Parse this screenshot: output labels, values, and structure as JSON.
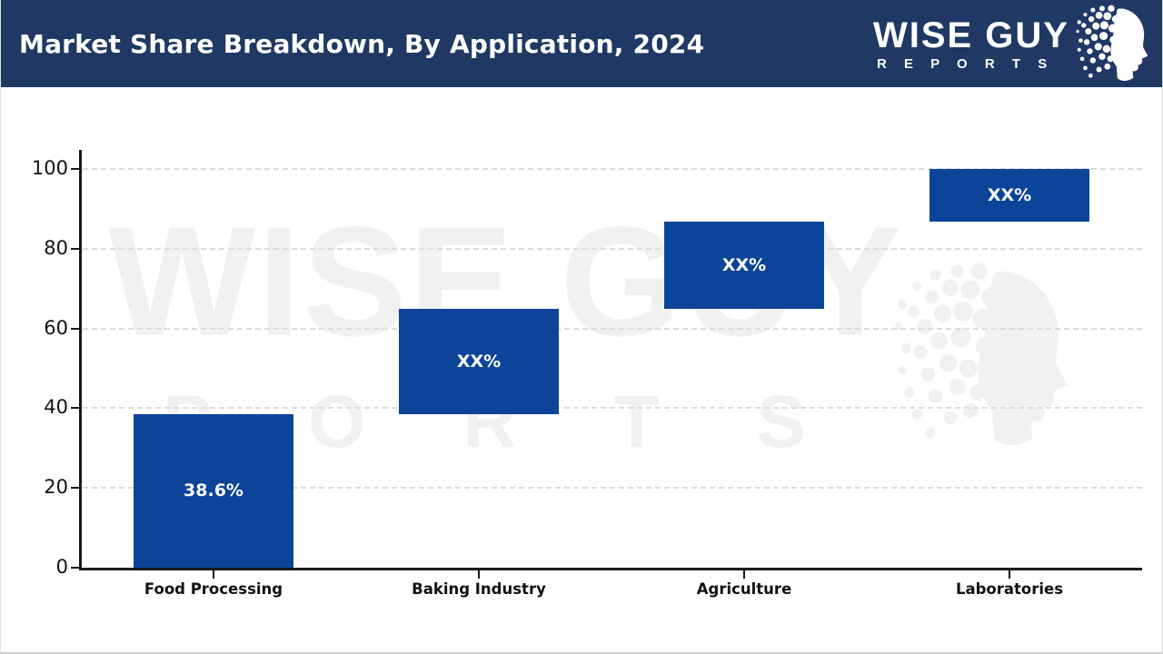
{
  "header": {
    "title": "Market Share Breakdown, By Application, 2024",
    "logo": {
      "line1": "WISE GUY",
      "line2": "R E P O R T S"
    }
  },
  "watermark": {
    "line1": "WISE GUY",
    "line2": "P O R T S"
  },
  "colors": {
    "header_bg": "#1f3864",
    "bar": "#0b4499",
    "grid": "#dcdcdc",
    "axis": "#1a1a1a",
    "watermark": "#f1f1f1",
    "title_text": "#ffffff",
    "bar_label_text": "#ffffff"
  },
  "chart_data": {
    "type": "bar",
    "variant": "waterfall",
    "title": "Market Share Breakdown, By Application, 2024",
    "categories": [
      "Food Processing",
      "Baking Industry",
      "Agriculture",
      "Laboratories"
    ],
    "segments": [
      {
        "category": "Food Processing",
        "start": 0,
        "end": 38.6,
        "value": 38.6,
        "label": "38.6%"
      },
      {
        "category": "Baking Industry",
        "start": 38.6,
        "end": 65.0,
        "value": 26.4,
        "label": "XX%"
      },
      {
        "category": "Agriculture",
        "start": 65.0,
        "end": 86.8,
        "value": 21.8,
        "label": "XX%"
      },
      {
        "category": "Laboratories",
        "start": 86.8,
        "end": 100.0,
        "value": 13.2,
        "label": "XX%"
      }
    ],
    "y_ticks": [
      0,
      20,
      40,
      60,
      80,
      100
    ],
    "ylim": [
      0,
      105
    ],
    "xlabel": "",
    "ylabel": "",
    "grid": "horizontal-dashed",
    "legend": "none"
  }
}
